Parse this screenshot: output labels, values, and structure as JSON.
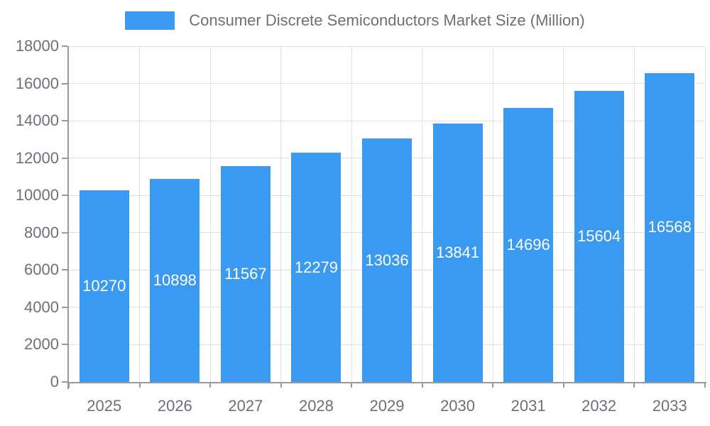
{
  "legend": {
    "label": "Consumer Discrete Semiconductors Market Size (Million)"
  },
  "chart_data": {
    "type": "bar",
    "title": "Consumer Discrete Semiconductors Market Size (Million)",
    "categories": [
      "2025",
      "2026",
      "2027",
      "2028",
      "2029",
      "2030",
      "2031",
      "2032",
      "2033"
    ],
    "values": [
      10270,
      10898,
      11567,
      12279,
      13036,
      13841,
      14696,
      15604,
      16568
    ],
    "xlabel": "",
    "ylabel": "",
    "ylim": [
      0,
      18000
    ],
    "y_ticks": [
      0,
      2000,
      4000,
      6000,
      8000,
      10000,
      12000,
      14000,
      16000,
      18000
    ],
    "bar_color": "#3a99f0",
    "bar_label_color": "#ffffff",
    "grid": true,
    "legend_position": "top center"
  },
  "colors": {
    "axis_line": "#999999",
    "grid_line_h": "#e0e0e0",
    "grid_line_v": "#e3e3e3",
    "axis_text": "#6e7079",
    "background": "#ffffff"
  }
}
